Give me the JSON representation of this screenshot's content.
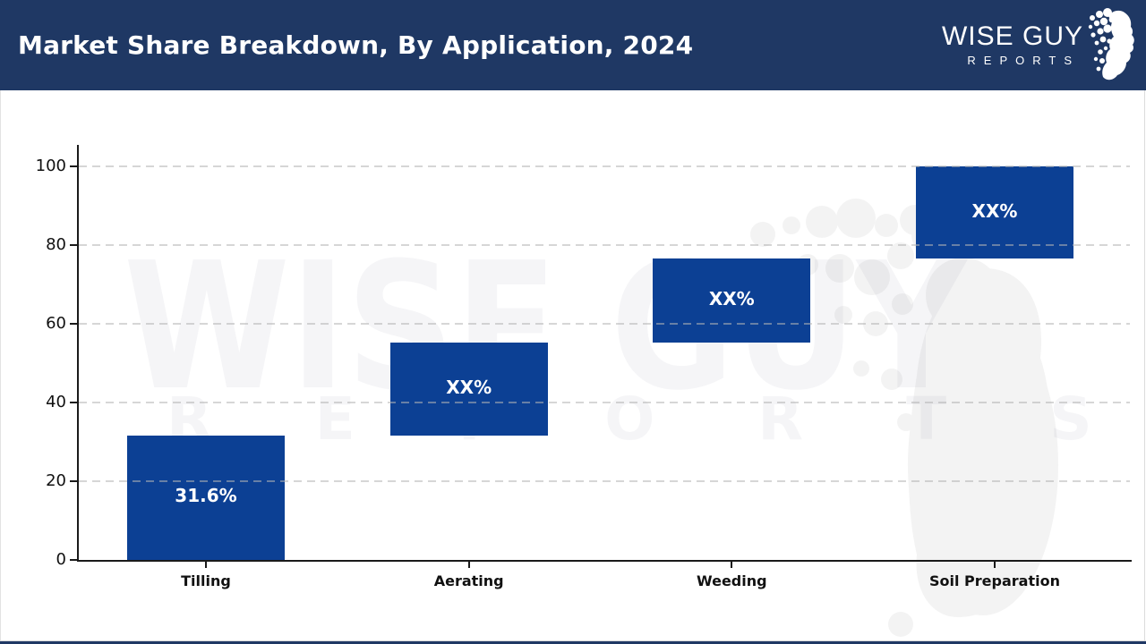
{
  "header": {
    "title": "Market Share Breakdown, By Application, 2024",
    "logo": {
      "line1": "WISE GUY",
      "line2": "REPORTS"
    }
  },
  "watermark": {
    "line1": "WISE GUY",
    "line2": "R E P O R T S"
  },
  "colors": {
    "header_bg": "#1F3864",
    "bar_blue": "#0C4094",
    "footer_bar": "#1F3864",
    "grid_gray": "#D9D9D9"
  },
  "chart_data": {
    "type": "bar",
    "subtype": "waterfall-floating-bars",
    "title": "Market Share Breakdown, By Application, 2024",
    "xlabel": "",
    "ylabel": "",
    "ylim": [
      0,
      105
    ],
    "grid": "horizontal-dashed",
    "legend": "none",
    "yticks": [
      0,
      20,
      40,
      60,
      80,
      100
    ],
    "categories": [
      "Tilling",
      "Aerating",
      "Weeding",
      "Soil Preparation"
    ],
    "segments": [
      {
        "category": "Tilling",
        "start": 0,
        "end": 31.6,
        "label": "31.6%"
      },
      {
        "category": "Aerating",
        "start": 31.6,
        "end": 55.2,
        "label": "XX%"
      },
      {
        "category": "Weeding",
        "start": 55.2,
        "end": 76.5,
        "label": "XX%"
      },
      {
        "category": "Soil Preparation",
        "start": 76.5,
        "end": 100,
        "label": "XX%"
      }
    ]
  }
}
